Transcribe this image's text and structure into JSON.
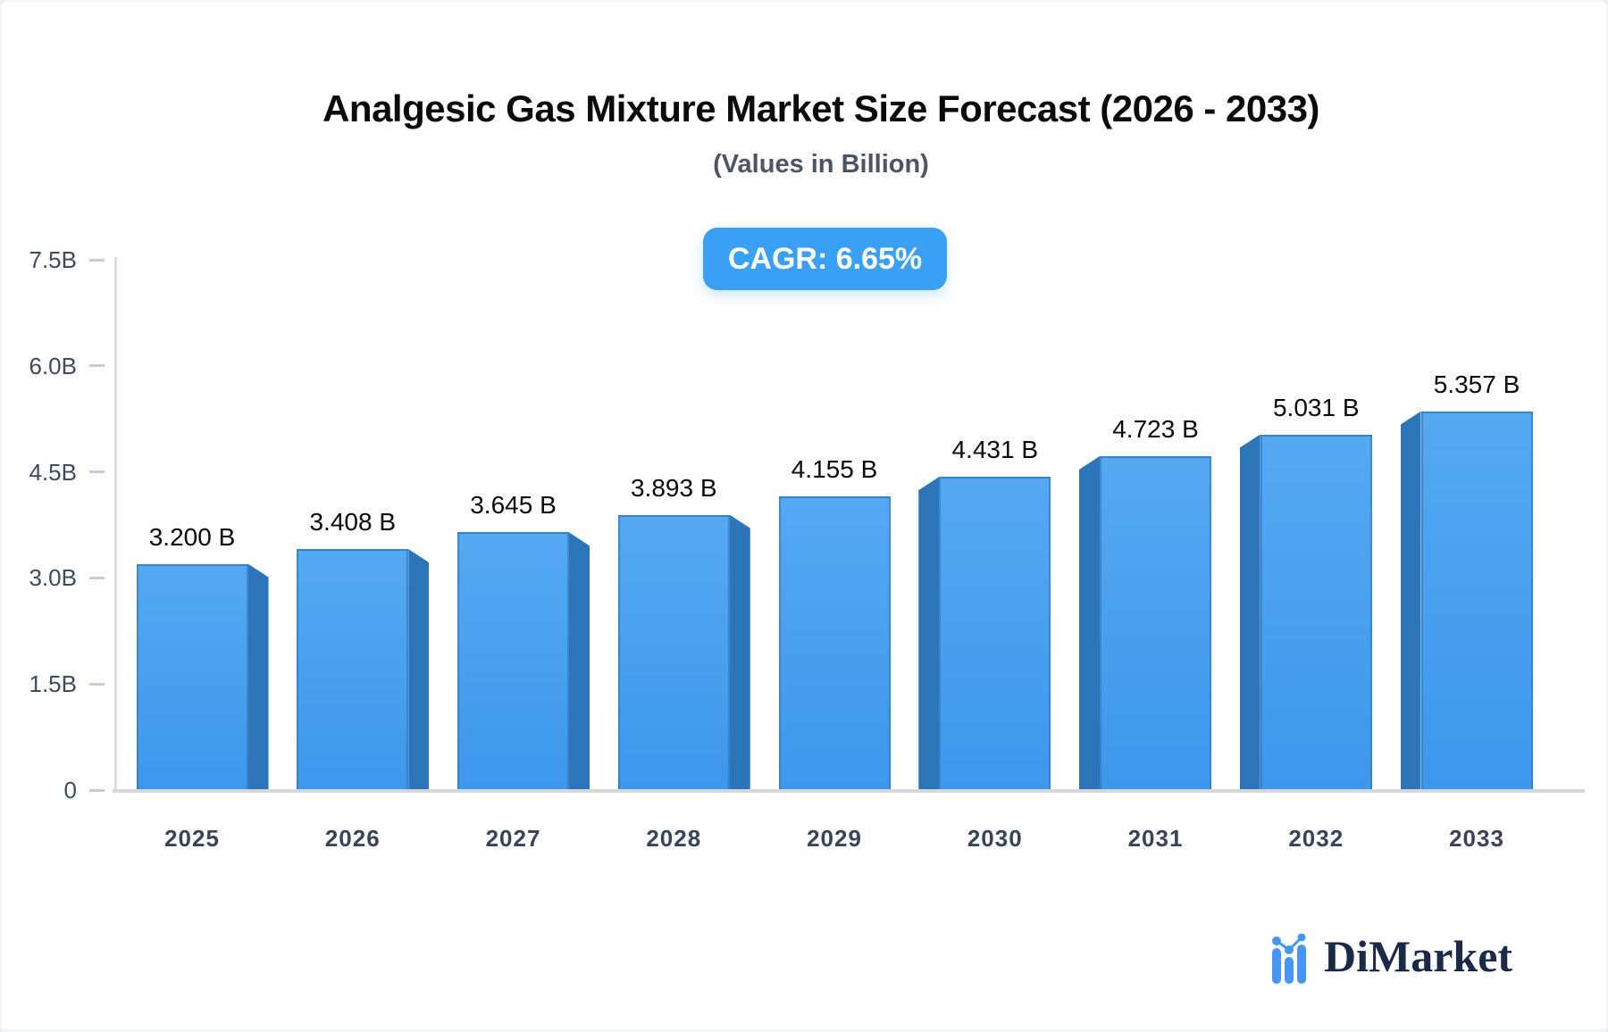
{
  "header": {
    "title": "Analgesic Gas Mixture Market Size Forecast (2026 - 2033)",
    "subtitle": "(Values in Billion)",
    "cagr_badge": "CAGR: 6.65%"
  },
  "chart_data": {
    "type": "bar",
    "title": "Analgesic Gas Mixture Market Size Forecast (2026 - 2033)",
    "subtitle": "(Values in Billion)",
    "cagr": "6.65%",
    "categories": [
      "2025",
      "2026",
      "2027",
      "2028",
      "2029",
      "2030",
      "2031",
      "2032",
      "2033"
    ],
    "values": [
      3.2,
      3.408,
      3.645,
      3.893,
      4.155,
      4.431,
      4.723,
      5.031,
      5.357
    ],
    "value_labels": [
      "3.200 B",
      "3.408 B",
      "3.645 B",
      "3.893 B",
      "4.155 B",
      "4.431 B",
      "4.723 B",
      "5.031 B",
      "5.357 B"
    ],
    "xlabel": "",
    "ylabel": "",
    "ylim": [
      0,
      7.5
    ],
    "y_ticks": [
      {
        "label": "0",
        "value": 0
      },
      {
        "label": "1.5B",
        "value": 1.5
      },
      {
        "label": "3.0B",
        "value": 3.0
      },
      {
        "label": "4.5B",
        "value": 4.5
      },
      {
        "label": "6.0B",
        "value": 6.0
      },
      {
        "label": "7.5B",
        "value": 7.5
      }
    ],
    "grid": false,
    "legend": false
  },
  "colors": {
    "bar_face_top": "#55a9f1",
    "bar_face_bottom": "#3e97ec",
    "bar_side": "#2b75b8",
    "badge_bg": "#3aa0f5",
    "axis_line": "#dadce0",
    "axis_line_strong": "#d5d8db",
    "logo_blue": "#4596f7",
    "logo_navy": "#1a2a47"
  },
  "logo": {
    "brand": "DiMarket",
    "icon": "bar-chart-sparkline-icon"
  }
}
